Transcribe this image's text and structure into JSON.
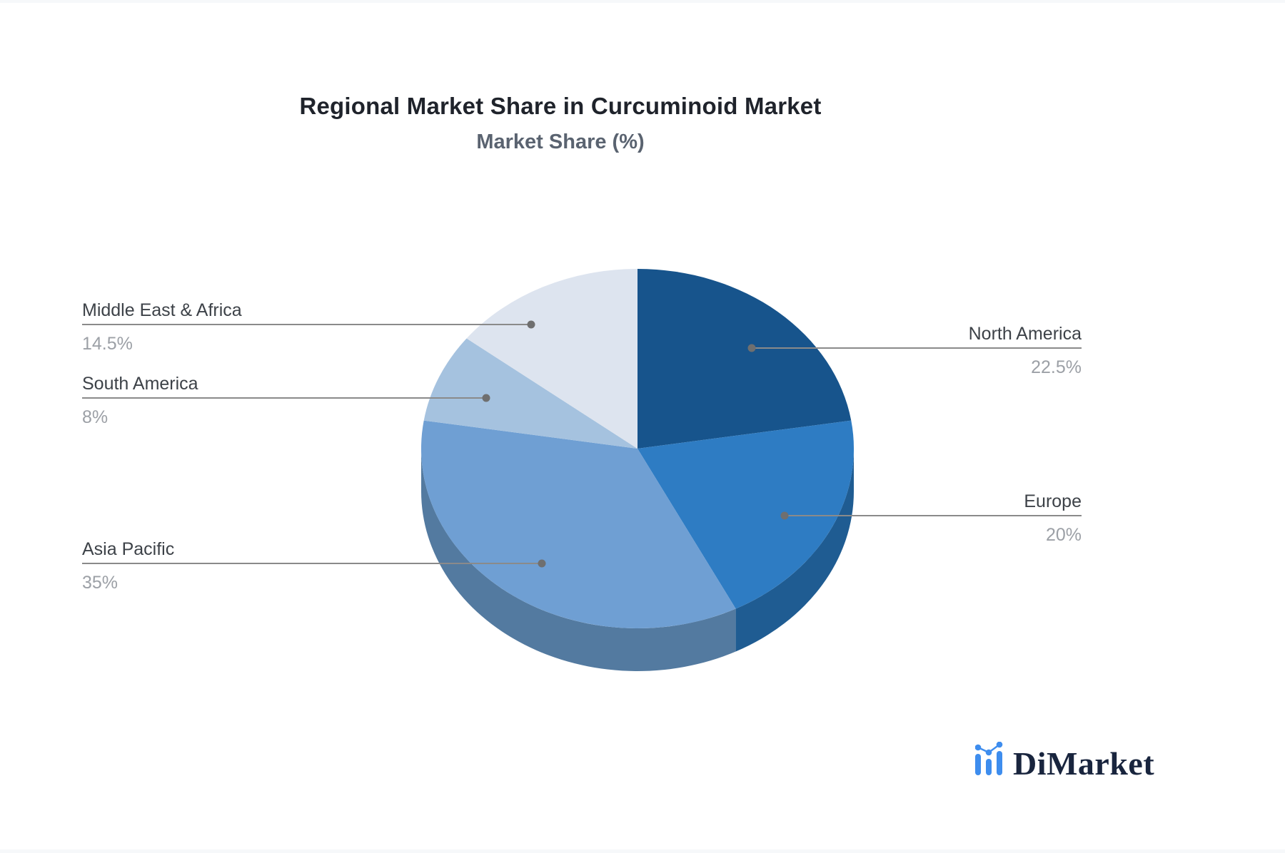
{
  "page": {
    "background": "#ffffff",
    "edge_strip_color": "#F6F8FA"
  },
  "chart_data": {
    "type": "pie",
    "title": "Regional Market Share in Curcuminoid Market",
    "subtitle": "Market Share (%)",
    "unit": "%",
    "start_angle": "top",
    "direction": "clockwise",
    "style_3d": true,
    "legend_position": "none",
    "grid": false,
    "slices": [
      {
        "label": "North America",
        "value": 22.5,
        "display": "22.5%",
        "color": "#17548C",
        "side_color": null,
        "label_side": "right"
      },
      {
        "label": "Europe",
        "value": 20,
        "display": "20%",
        "color": "#2E7CC3",
        "side_color": "#1F5C92",
        "label_side": "right"
      },
      {
        "label": "Asia Pacific",
        "value": 35,
        "display": "35%",
        "color": "#6F9FD3",
        "side_color": "#537AA0",
        "label_side": "left"
      },
      {
        "label": "South America",
        "value": 8,
        "display": "8%",
        "color": "#A5C2DF",
        "side_color": null,
        "label_side": "left"
      },
      {
        "label": "Middle East & Africa",
        "value": 14.5,
        "display": "14.5%",
        "color": "#DDE4EF",
        "side_color": null,
        "label_side": "left"
      }
    ],
    "title_color": "#1F232B",
    "subtitle_color": "#5A6370",
    "label_text_color": "#3D4248",
    "label_value_color": "#9CA0A6",
    "leader_line_color": "#8A8A8A",
    "leader_dot_color": "#6F6F6F"
  },
  "brand": {
    "name": "DiMarket",
    "icon": "bar-line-chart-logo",
    "icon_color": "#3E8DEE",
    "text_color": "#19253E"
  }
}
